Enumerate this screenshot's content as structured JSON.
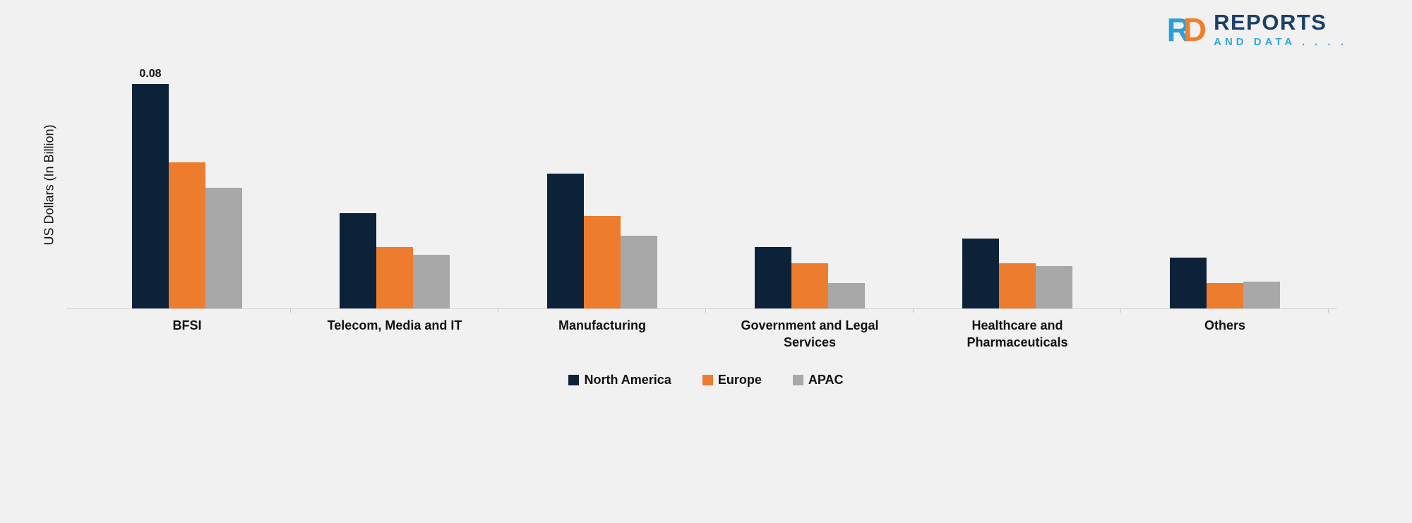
{
  "logo": {
    "icon_r": "R",
    "icon_d": "D",
    "reports": "REPORTS",
    "and_data": "AND DATA . . . ."
  },
  "chart_data": {
    "type": "bar",
    "title": "",
    "xlabel": "",
    "ylabel": "US Dollars  (In Billion)",
    "ylim": [
      0,
      0.088
    ],
    "grid": false,
    "legend_position": "bottom",
    "categories": [
      "BFSI",
      "Telecom, Media and IT",
      "Manufacturing",
      "Government and Legal Services",
      "Healthcare and Pharmaceuticals",
      "Others"
    ],
    "series": [
      {
        "name": "North America",
        "color": "#0b2239",
        "values": [
          0.08,
          0.034,
          0.048,
          0.022,
          0.025,
          0.018
        ]
      },
      {
        "name": "Europe",
        "color": "#ee7c2e",
        "values": [
          0.052,
          0.022,
          0.033,
          0.016,
          0.016,
          0.009
        ]
      },
      {
        "name": "APAC",
        "color": "#a8a8a8",
        "values": [
          0.043,
          0.019,
          0.026,
          0.009,
          0.015,
          0.0095
        ]
      }
    ],
    "data_labels": [
      {
        "series": "North America",
        "category": "BFSI",
        "text": "0.08"
      }
    ]
  }
}
